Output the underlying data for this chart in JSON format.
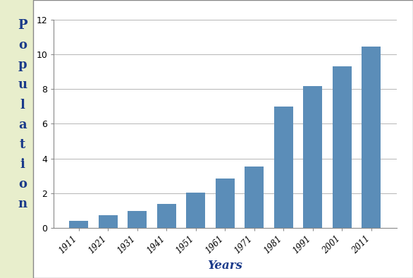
{
  "years": [
    "1911",
    "1921",
    "1931",
    "1941",
    "1951",
    "1961",
    "1971",
    "1981",
    "1991",
    "2001",
    "2011"
  ],
  "values": [
    0.42,
    0.72,
    0.97,
    1.37,
    2.05,
    2.85,
    3.52,
    7.0,
    8.15,
    9.3,
    10.45
  ],
  "bar_color": "#5b8db8",
  "ylabel_letters": [
    "P",
    "o",
    "p",
    "u",
    "l",
    "a",
    "t",
    "i",
    "o",
    "n"
  ],
  "ylabel_color": "#1a3a8a",
  "xlabel": "Years",
  "xlabel_color": "#1a3a8a",
  "ylim": [
    0,
    12
  ],
  "yticks": [
    0,
    2,
    4,
    6,
    8,
    10,
    12
  ],
  "background_color": "#ffffff",
  "outer_bg_color": "#e8eecc",
  "grid_color": "#aaaaaa",
  "spine_color": "#888888",
  "tick_label_color": "#000000",
  "border_color": "#888888"
}
